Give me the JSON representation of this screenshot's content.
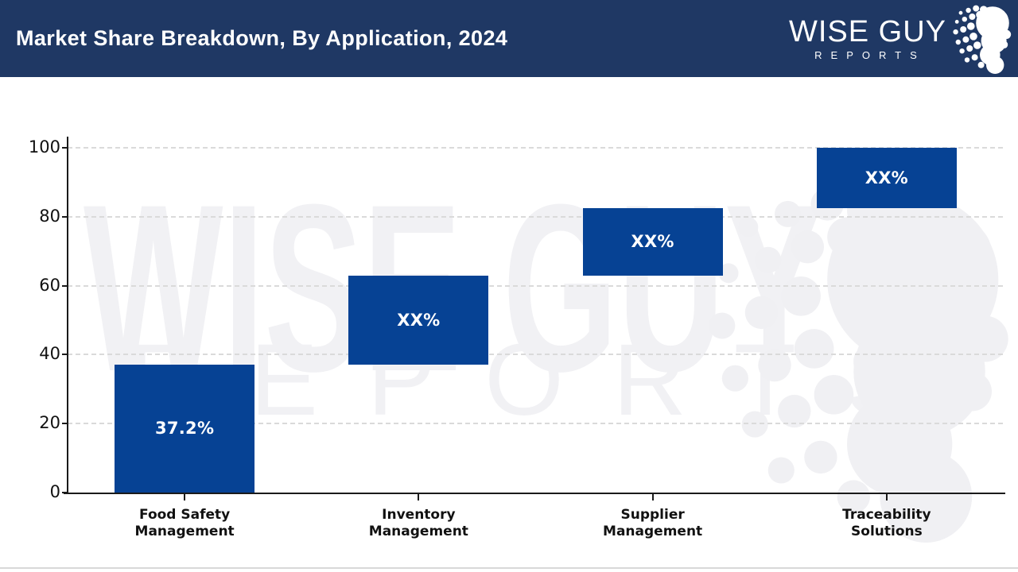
{
  "header": {
    "title": "Market Share Breakdown, By Application, 2024",
    "logo": {
      "wordmark": "WISE GUY",
      "subtitle": "REPORTS"
    },
    "background_color": "#1f3864",
    "text_color": "#ffffff"
  },
  "watermark": {
    "wordmark": "WISE GUY",
    "subtitle": "REPORTS",
    "color": "#f1f1f4"
  },
  "chart_data": {
    "type": "bar",
    "subtype": "waterfall",
    "title": "Market Share Breakdown, By Application, 2024",
    "categories": [
      "Food Safety Management",
      "Inventory Management",
      "Supplier Management",
      "Traceability Solutions"
    ],
    "category_lines": [
      [
        "Food Safety",
        "Management"
      ],
      [
        "Inventory",
        "Management"
      ],
      [
        "Supplier",
        "Management"
      ],
      [
        "Traceability",
        "Solutions"
      ]
    ],
    "segments": [
      {
        "category": "Food Safety Management",
        "label": "37.2%",
        "base": 0,
        "top": 37.2
      },
      {
        "category": "Inventory Management",
        "label": "XX%",
        "base": 37.2,
        "top": 62.8
      },
      {
        "category": "Supplier Management",
        "label": "XX%",
        "base": 62.8,
        "top": 82.6
      },
      {
        "category": "Traceability Solutions",
        "label": "XX%",
        "base": 82.6,
        "top": 100
      }
    ],
    "ylabel": "",
    "xlabel": "",
    "ylim": [
      0,
      100
    ],
    "yticks": [
      0,
      20,
      40,
      60,
      80,
      100
    ],
    "grid": "horizontal dashed",
    "legend": "none",
    "bar_color": "#064294",
    "bar_label_color": "#ffffff",
    "grid_color": "#dadada",
    "axis_color": "#1a1a1a"
  }
}
